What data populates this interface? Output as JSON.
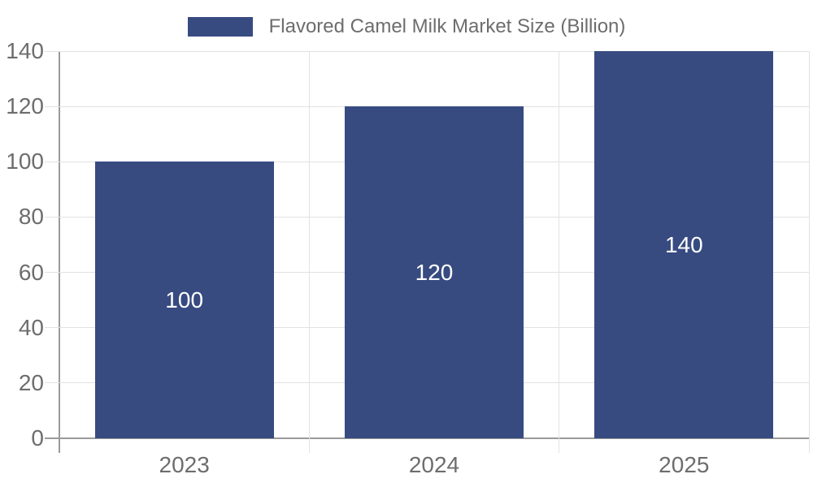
{
  "legend": {
    "label": "Flavored Camel Milk Market Size (Billion)"
  },
  "chart_data": {
    "type": "bar",
    "title": "",
    "legend_label": "Flavored Camel Milk Market Size (Billion)",
    "legend_position": "top-center",
    "categories": [
      "2023",
      "2024",
      "2025"
    ],
    "series": [
      {
        "name": "Flavored Camel Milk Market Size (Billion)",
        "values": [
          100,
          120,
          140
        ]
      }
    ],
    "data_labels": [
      "100",
      "120",
      "140"
    ],
    "xlabel": "",
    "ylabel": "",
    "ylim": [
      0,
      140
    ],
    "yticks": [
      0,
      20,
      40,
      60,
      80,
      100,
      120,
      140
    ],
    "grid": true,
    "colors": {
      "bar": "#374b81",
      "axis_line": "#9a9a9a",
      "gridline": "#e2e2e2",
      "tick_label": "#6d6d6d",
      "legend_text": "#6d6d6d",
      "data_label": "#ffffff",
      "background": "#ffffff"
    }
  }
}
